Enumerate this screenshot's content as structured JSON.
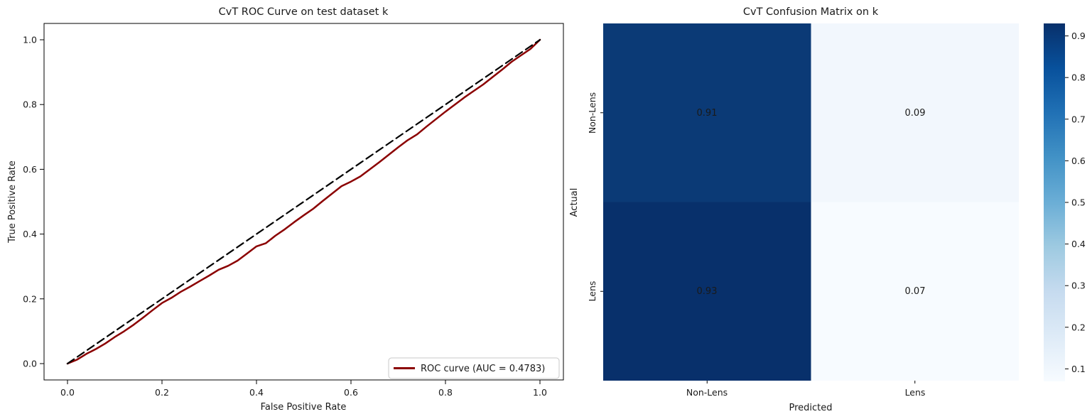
{
  "figure": {
    "background": "#ffffff"
  },
  "chart_data": [
    {
      "type": "line",
      "title": "CvT ROC Curve on test dataset k",
      "xlabel": "False Positive Rate",
      "ylabel": "True Positive Rate",
      "xlim": [
        -0.05,
        1.05
      ],
      "ylim": [
        -0.05,
        1.05
      ],
      "grid": false,
      "x_ticks": [
        0.0,
        0.2,
        0.4,
        0.6,
        0.8,
        1.0
      ],
      "y_ticks": [
        0.0,
        0.2,
        0.4,
        0.6,
        0.8,
        1.0
      ],
      "x_tick_labels": [
        "0.0",
        "0.2",
        "0.4",
        "0.6",
        "0.8",
        "1.0"
      ],
      "y_tick_labels": [
        "0.0",
        "0.2",
        "0.4",
        "0.6",
        "0.8",
        "1.0"
      ],
      "legend": {
        "position": "lower right",
        "label": "ROC curve (AUC = 0.4783)"
      },
      "auc": 0.4783,
      "series": [
        {
          "name": "ROC curve (AUC = 0.4783)",
          "color": "#8b0000",
          "linestyle": "solid",
          "linewidth": 2.5,
          "points": [
            [
              0.0,
              0.0
            ],
            [
              0.02,
              0.012
            ],
            [
              0.04,
              0.03
            ],
            [
              0.06,
              0.045
            ],
            [
              0.08,
              0.062
            ],
            [
              0.1,
              0.082
            ],
            [
              0.12,
              0.1
            ],
            [
              0.14,
              0.12
            ],
            [
              0.16,
              0.142
            ],
            [
              0.18,
              0.165
            ],
            [
              0.2,
              0.187
            ],
            [
              0.22,
              0.203
            ],
            [
              0.24,
              0.222
            ],
            [
              0.26,
              0.238
            ],
            [
              0.28,
              0.255
            ],
            [
              0.3,
              0.272
            ],
            [
              0.32,
              0.29
            ],
            [
              0.34,
              0.302
            ],
            [
              0.36,
              0.318
            ],
            [
              0.38,
              0.34
            ],
            [
              0.4,
              0.362
            ],
            [
              0.42,
              0.372
            ],
            [
              0.44,
              0.395
            ],
            [
              0.46,
              0.415
            ],
            [
              0.48,
              0.437
            ],
            [
              0.5,
              0.458
            ],
            [
              0.52,
              0.478
            ],
            [
              0.54,
              0.502
            ],
            [
              0.56,
              0.525
            ],
            [
              0.58,
              0.548
            ],
            [
              0.6,
              0.562
            ],
            [
              0.62,
              0.578
            ],
            [
              0.64,
              0.6
            ],
            [
              0.66,
              0.622
            ],
            [
              0.68,
              0.645
            ],
            [
              0.7,
              0.668
            ],
            [
              0.72,
              0.69
            ],
            [
              0.74,
              0.708
            ],
            [
              0.76,
              0.732
            ],
            [
              0.78,
              0.755
            ],
            [
              0.8,
              0.778
            ],
            [
              0.82,
              0.8
            ],
            [
              0.84,
              0.822
            ],
            [
              0.86,
              0.842
            ],
            [
              0.88,
              0.862
            ],
            [
              0.9,
              0.885
            ],
            [
              0.92,
              0.908
            ],
            [
              0.94,
              0.932
            ],
            [
              0.96,
              0.952
            ],
            [
              0.98,
              0.972
            ],
            [
              1.0,
              1.0
            ]
          ]
        },
        {
          "name": "chance-diagonal",
          "color": "#000000",
          "linestyle": "dashed",
          "linewidth": 2.2,
          "points": [
            [
              0.0,
              0.0
            ],
            [
              1.0,
              1.0
            ]
          ]
        }
      ]
    },
    {
      "type": "heatmap",
      "title": "CvT Confusion Matrix on k",
      "xlabel": "Predicted",
      "ylabel": "Actual",
      "x_categories": [
        "Non-Lens",
        "Lens"
      ],
      "y_categories": [
        "Non-Lens",
        "Lens"
      ],
      "values": [
        [
          0.91,
          0.09
        ],
        [
          0.93,
          0.07
        ]
      ],
      "value_labels": [
        [
          "0.91",
          "0.09"
        ],
        [
          "0.93",
          "0.07"
        ]
      ],
      "cell_colors": [
        [
          "#0b3a76",
          "#f2f7fd"
        ],
        [
          "#08306b",
          "#f7fbff"
        ]
      ],
      "cell_text_colors": [
        [
          "#ffffff",
          "#111111"
        ],
        [
          "#ffffff",
          "#111111"
        ]
      ],
      "colormap": "Blues",
      "colorbar": {
        "vmin": 0.07,
        "vmax": 0.93,
        "ticks": [
          0.9,
          0.8,
          0.7,
          0.6,
          0.5,
          0.4,
          0.3,
          0.2,
          0.1
        ],
        "tick_labels": [
          "0.9",
          "0.8",
          "0.7",
          "0.6",
          "0.5",
          "0.4",
          "0.3",
          "0.2",
          "0.1"
        ],
        "gradient_top_to_bottom": [
          "#08306b",
          "#08519c",
          "#2171b5",
          "#4292c6",
          "#6baed6",
          "#9ecae1",
          "#c6dbef",
          "#deebf7",
          "#f7fbff"
        ]
      }
    }
  ]
}
